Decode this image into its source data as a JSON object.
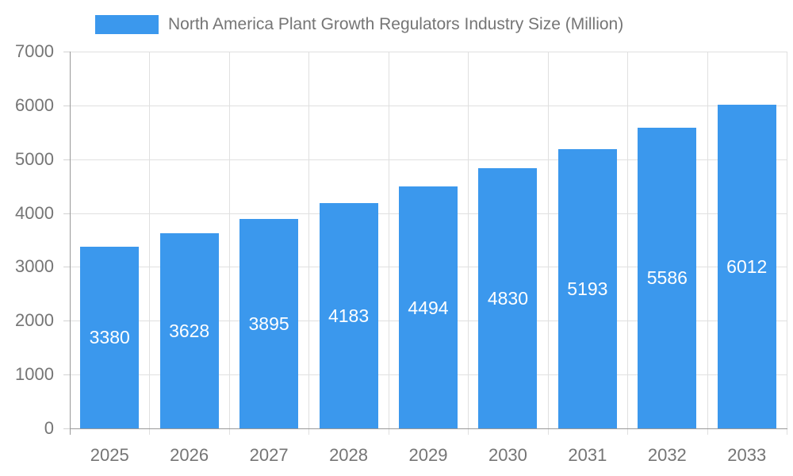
{
  "chart_data": {
    "type": "bar",
    "title": "North America Plant Growth Regulators Industry Size (Million)",
    "categories": [
      "2025",
      "2026",
      "2027",
      "2028",
      "2029",
      "2030",
      "2031",
      "2032",
      "2033"
    ],
    "values": [
      3380,
      3628,
      3895,
      4183,
      4494,
      4830,
      5193,
      5586,
      6012
    ],
    "xlabel": "",
    "ylabel": "",
    "ylim": [
      0,
      7000
    ],
    "yticks": [
      0,
      1000,
      2000,
      3000,
      4000,
      5000,
      6000,
      7000
    ],
    "grid": true,
    "bar_labels_inside": true,
    "legend": {
      "position": "top",
      "label": "North America Plant Growth Regulators Industry Size (Million)"
    }
  },
  "colors": {
    "bar": "#3b98ed",
    "grid": "#e0e0e0",
    "axis": "#999999",
    "tick": "#d2d2d2",
    "text": "#757575",
    "bar_label": "#ffffff",
    "background": "#ffffff"
  }
}
